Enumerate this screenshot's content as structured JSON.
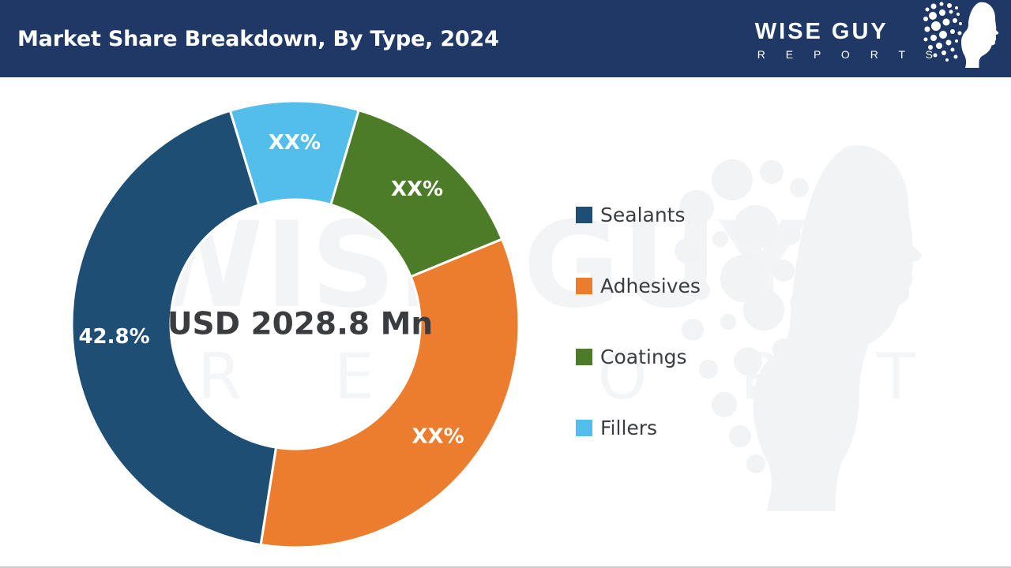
{
  "header": {
    "title": "Market Share Breakdown, By Type, 2024",
    "logo": {
      "name_line": "WISE GUY",
      "reports_line": "R E P O R T S"
    }
  },
  "watermark": {
    "name_line": "WISE GUY",
    "reports_line": "R E P O R T S"
  },
  "chart_data": {
    "type": "pie",
    "subtype": "donut",
    "title": "Market Share Breakdown, By Type, 2024",
    "center_label": "USD 2028.8 Mn",
    "center_label_color": "#3A3C40",
    "segment_label_color": "#ffffff",
    "start_angle_deg": -17,
    "legend_position": "right",
    "segments": [
      {
        "label": "Fillers",
        "display_label": "XX%",
        "value_pct": 9.3,
        "color": "#53BEE9"
      },
      {
        "label": "Coatings",
        "display_label": "XX%",
        "value_pct": 14.2,
        "color": "#4D7C29"
      },
      {
        "label": "Adhesives",
        "display_label": "XX%",
        "value_pct": 33.7,
        "color": "#EC7D2F"
      },
      {
        "label": "Sealants",
        "display_label": "42.8%",
        "value_pct": 42.8,
        "color": "#1F4E74"
      }
    ],
    "legend": [
      {
        "label": "Sealants",
        "color": "#1F4E74"
      },
      {
        "label": "Adhesives",
        "color": "#EC7D2F"
      },
      {
        "label": "Coatings",
        "color": "#4D7C29"
      },
      {
        "label": "Fillers",
        "color": "#53BEE9"
      }
    ]
  }
}
